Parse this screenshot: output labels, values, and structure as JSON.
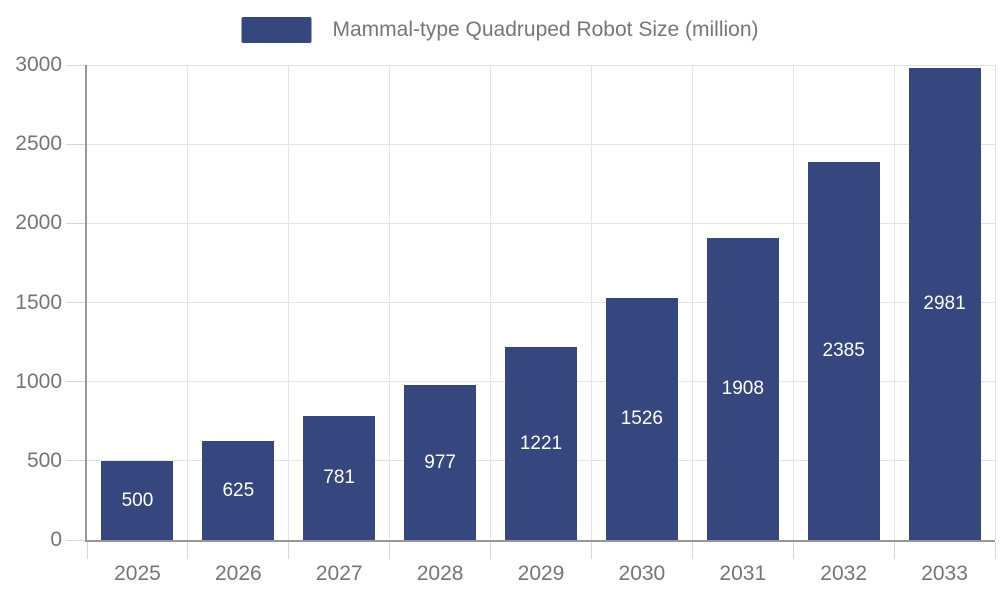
{
  "chart_data": {
    "type": "bar",
    "title": "Mammal-type Quadruped Robot Size (million)",
    "categories": [
      "2025",
      "2026",
      "2027",
      "2028",
      "2029",
      "2030",
      "2031",
      "2032",
      "2033"
    ],
    "values": [
      500,
      625,
      781,
      977,
      1221,
      1526,
      1908,
      2385,
      2981
    ],
    "xlabel": "",
    "ylabel": "",
    "ylim": [
      0,
      3000
    ],
    "yticks": [
      0,
      500,
      1000,
      1500,
      2000,
      2500,
      3000
    ],
    "grid": true,
    "legend_position": "top-center",
    "value_labels": "inside-center",
    "colors": {
      "bar": "#36467e",
      "bar_value_text": "#ffffff",
      "axis_line": "#979797",
      "gridline": "#e4e4e7",
      "tick": "#d6d6da",
      "tick_label_text": "#737579",
      "legend_text": "#74767a",
      "background": "#ffffff"
    }
  }
}
